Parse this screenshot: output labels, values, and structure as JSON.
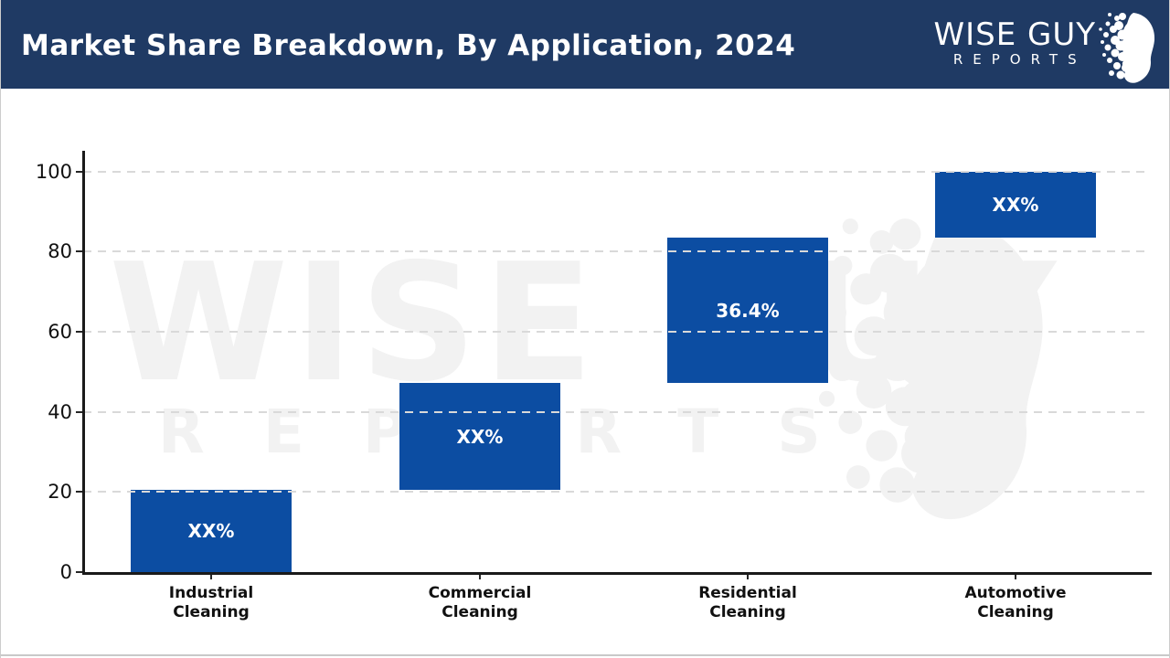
{
  "header": {
    "background": "#1f3a64",
    "title": "Market Share Breakdown, By Application, 2024",
    "logo": {
      "wordmark": "WISE GUY",
      "tagline": "REPORTS"
    }
  },
  "watermark": {
    "wordmark": "WISE GUY",
    "tagline": "REPORTS",
    "color": "#f2f2f2"
  },
  "chart_data": {
    "type": "bar",
    "variant": "floating-segment-waterfall",
    "title": "Market Share Breakdown, By Application, 2024",
    "xlabel": "",
    "ylabel": "",
    "ylim": [
      0,
      105
    ],
    "yticks": [
      0,
      20,
      40,
      60,
      80,
      100
    ],
    "grid": {
      "axis": "y",
      "linestyle": "dashed",
      "color": "#d9d9d9",
      "drawn_above_bars": true
    },
    "bar_color": "#0c4da2",
    "value_label_color": "#ffffff",
    "categories": [
      {
        "line1": "Industrial",
        "line2": "Cleaning"
      },
      {
        "line1": "Commercial",
        "line2": "Cleaning"
      },
      {
        "line1": "Residential",
        "line2": "Cleaning"
      },
      {
        "line1": "Automotive",
        "line2": "Cleaning"
      }
    ],
    "segments": [
      {
        "category": "Industrial Cleaning",
        "start": 0,
        "end": 20.6,
        "value": 20.6,
        "label": "XX%"
      },
      {
        "category": "Commercial Cleaning",
        "start": 20.6,
        "end": 47.1,
        "value": 26.5,
        "label": "XX%"
      },
      {
        "category": "Residential Cleaning",
        "start": 47.1,
        "end": 83.5,
        "value": 36.4,
        "label": "36.4%"
      },
      {
        "category": "Automotive Cleaning",
        "start": 83.5,
        "end": 100,
        "value": 16.5,
        "label": "XX%"
      }
    ]
  }
}
